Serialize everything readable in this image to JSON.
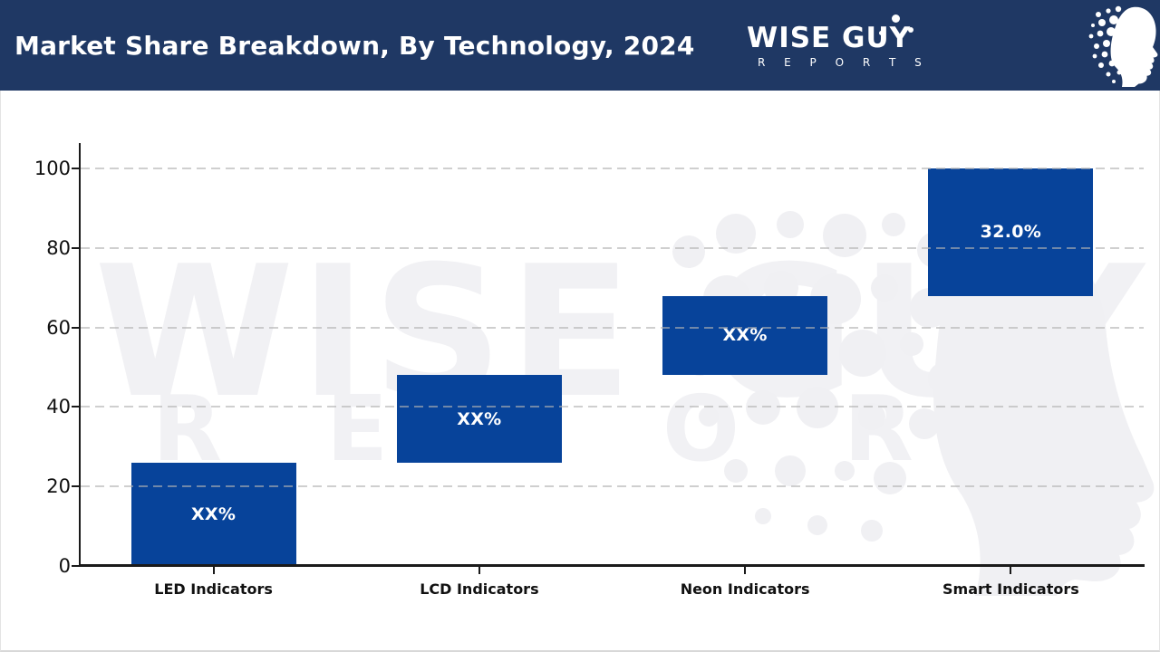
{
  "header": {
    "title": "Market Share Breakdown, By Technology, 2024",
    "logo": {
      "line1": "WISE GUY",
      "line2": "R E P O R T S"
    }
  },
  "watermark": {
    "line1": "WISE GUY",
    "line2": "R E P O R T S"
  },
  "chart_data": {
    "type": "bar",
    "variant": "floating-segment-waterfall",
    "title": "Market Share Breakdown, By Technology, 2024",
    "categories": [
      "LED Indicators",
      "LCD Indicators",
      "Neon Indicators",
      "Smart Indicators"
    ],
    "segments": [
      {
        "category": "LED Indicators",
        "start": 0,
        "end": 26,
        "value_label": "XX%"
      },
      {
        "category": "LCD Indicators",
        "start": 26,
        "end": 48,
        "value_label": "XX%"
      },
      {
        "category": "Neon Indicators",
        "start": 48,
        "end": 68,
        "value_label": "XX%"
      },
      {
        "category": "Smart Indicators",
        "start": 68,
        "end": 100,
        "value_label": "32.0%"
      }
    ],
    "labeled_value_pct": 32.0,
    "xlabel": "",
    "ylabel": "",
    "ylim": [
      0,
      100
    ],
    "yticks": [
      0,
      20,
      40,
      60,
      80,
      100
    ],
    "grid": "horizontal-dashed",
    "legend_position": "none",
    "bar_color": "#07439a",
    "bar_label_color": "#ffffff"
  },
  "colors": {
    "header_bg": "#1f3864",
    "bar_blue": "#07439a",
    "axis_black": "#1a1a1a",
    "gridline_gray": "#d9d9d9",
    "watermark_gray": "#f1f1f4",
    "background": "#ffffff"
  }
}
